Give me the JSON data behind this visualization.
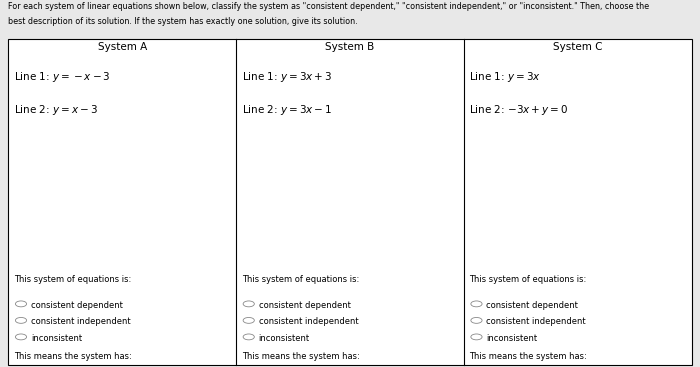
{
  "title_text": "For each system of linear equations shown below, classify the system as \"consistent dependent,\" \"consistent independent,\" or\n\"inconsistent.\" Then, choose the best description of its solution. If the system has exactly one solution, give its solution.",
  "systems": [
    {
      "name": "System A",
      "line1_label": "Line 1: y = -x 3",
      "line1_label_raw": "Line 1: $y=-x-3$",
      "line2_label_raw": "Line 2: $y=x-3$",
      "line1_slope": -1,
      "line1_intercept": -3,
      "line2_slope": 1,
      "line2_intercept": -3,
      "line1_color": "#3333bb",
      "line2_color": "#3333bb",
      "graph_L1_x": -5.2,
      "graph_L1_y": -5.5,
      "graph_L2_x": 3.5,
      "graph_L2_y": -5.5
    },
    {
      "name": "System B",
      "line1_label_raw": "Line 1: $y=3x+3$",
      "line2_label_raw": "Line 2: $y=3x-1$",
      "line1_slope": 3,
      "line1_intercept": 3,
      "line2_slope": 3,
      "line2_intercept": -1,
      "line1_color": "#3333bb",
      "line2_color": "#3333bb",
      "graph_L1_x": -0.5,
      "graph_L1_y": 5.8,
      "graph_L2_x": -5.2,
      "graph_L2_y": -5.5
    },
    {
      "name": "System C",
      "line1_label_raw": "Line 1: $y=3x$",
      "line2_label_raw": "Line 2: $-3x+y=0$",
      "line1_slope": 3,
      "line1_intercept": 0,
      "line2_slope": 3,
      "line2_intercept": 0,
      "line1_color": "#3333bb",
      "line2_color": "#3333bb",
      "graph_L1_x": 1.2,
      "graph_L1_y": 5.8,
      "graph_L2_x": -5.2,
      "graph_L2_y": -5.5
    }
  ],
  "xlim": [
    -6,
    6
  ],
  "ylim": [
    -7,
    7
  ],
  "options": [
    "consistent dependent",
    "consistent independent",
    "inconsistent"
  ],
  "bottom_text": "This means the system has:",
  "this_system_text": "This system of equations is:",
  "bg_color": "#e8e8e8",
  "panel_bg": "#f0f0f0",
  "grid_major_color": "#aaaaaa",
  "grid_minor_color": "#cccccc"
}
